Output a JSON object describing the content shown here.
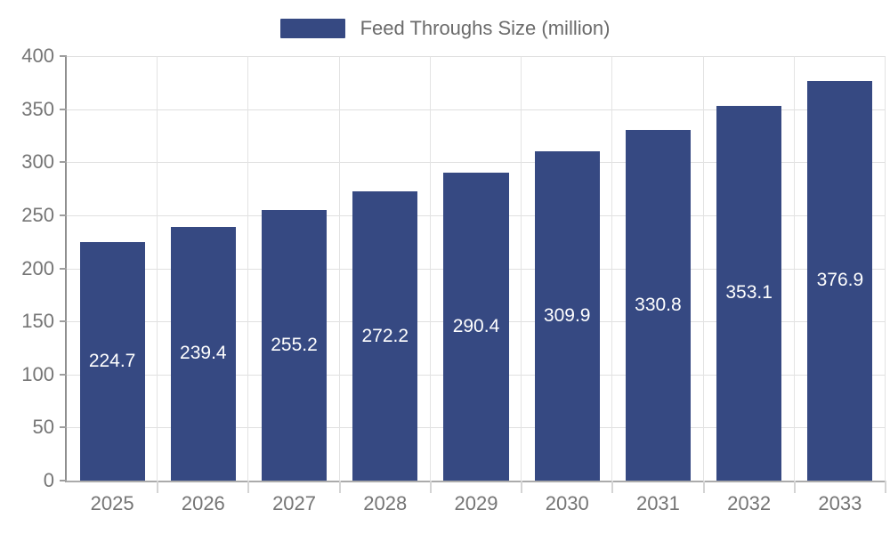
{
  "chart_data": {
    "type": "bar",
    "title": "Feed Throughs Size (million)",
    "categories": [
      "2025",
      "2026",
      "2027",
      "2028",
      "2029",
      "2030",
      "2031",
      "2032",
      "2033"
    ],
    "values": [
      224.7,
      239.4,
      255.2,
      272.2,
      290.4,
      309.9,
      330.8,
      353.1,
      376.9
    ],
    "xlabel": "",
    "ylabel": "",
    "ylim": [
      0,
      400
    ],
    "yticks": [
      0,
      50,
      100,
      150,
      200,
      250,
      300,
      350,
      400
    ],
    "grid": true,
    "legend_position": "top",
    "bar_width_fraction": 0.715,
    "colors": {
      "bar": "#364982",
      "bar_label": "#ffffff",
      "axis_text": "#757575",
      "legend_text": "#6b6b6b",
      "grid_line": "#e0e0e0",
      "y_axis_line": "#8f8f8f",
      "x_axis_line": "#ababab"
    }
  },
  "legend": {
    "label": "Feed Throughs Size (million)"
  }
}
